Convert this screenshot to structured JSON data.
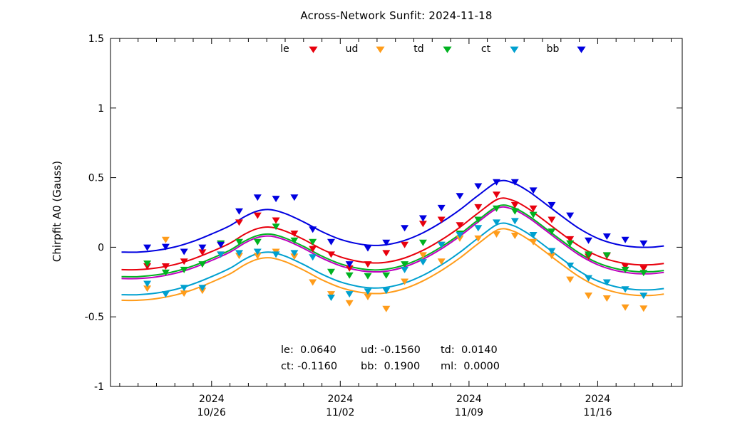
{
  "background": "#ffffff",
  "chart_data": {
    "type": "line",
    "title": "Across-Network Sunfit: 2024-11-18",
    "ylabel": "Chirpfit A0 (Gauss)",
    "ylim": [
      -1,
      1.5
    ],
    "y_ticks": [
      {
        "v": -1,
        "label": "-1"
      },
      {
        "v": -0.5,
        "label": "-0.5"
      },
      {
        "v": 0,
        "label": "0"
      },
      {
        "v": 0.5,
        "label": "0.5"
      },
      {
        "v": 1,
        "label": "1"
      },
      {
        "v": 1.5,
        "label": "1.5"
      }
    ],
    "x_range_days": [
      -0.5,
      30.6
    ],
    "x_minor_tick_every_days": 1,
    "x_major_ticks": [
      {
        "day": 5,
        "line1": "2024",
        "line2": "10/26"
      },
      {
        "day": 12,
        "line1": "2024",
        "line2": "11/02"
      },
      {
        "day": 19,
        "line1": "2024",
        "line2": "11/09"
      },
      {
        "day": 26,
        "line1": "2024",
        "line2": "11/16"
      }
    ],
    "grid": false,
    "marker": "triangle-down",
    "legend_position": "top-center-inside",
    "legend_entries": [
      "le",
      "ud",
      "td",
      "ct",
      "bb"
    ],
    "master_curve_ml": [
      [
        0.1,
        -0.225
      ],
      [
        1,
        -0.225
      ],
      [
        2,
        -0.213
      ],
      [
        3,
        -0.188
      ],
      [
        4,
        -0.148
      ],
      [
        5,
        -0.095
      ],
      [
        6,
        -0.035
      ],
      [
        6.8,
        0.03
      ],
      [
        7.5,
        0.07
      ],
      [
        8.2,
        0.08
      ],
      [
        9,
        0.052
      ],
      [
        10,
        -0.008
      ],
      [
        11,
        -0.078
      ],
      [
        12,
        -0.133
      ],
      [
        13,
        -0.166
      ],
      [
        13.8,
        -0.177
      ],
      [
        14.6,
        -0.17
      ],
      [
        15.5,
        -0.141
      ],
      [
        16.5,
        -0.086
      ],
      [
        17.5,
        -0.011
      ],
      [
        18.5,
        0.079
      ],
      [
        19.5,
        0.182
      ],
      [
        20.6,
        0.283
      ],
      [
        21.4,
        0.272
      ],
      [
        22.2,
        0.215
      ],
      [
        23,
        0.138
      ],
      [
        24,
        0.038
      ],
      [
        25,
        -0.056
      ],
      [
        26,
        -0.126
      ],
      [
        27,
        -0.168
      ],
      [
        28,
        -0.188
      ],
      [
        28.9,
        -0.19
      ],
      [
        29.6,
        -0.181
      ]
    ],
    "series": [
      {
        "name": "le",
        "color": "#e8000d",
        "offset": 0.064,
        "points": [
          [
            1.5,
            -0.135
          ],
          [
            2.5,
            -0.135
          ],
          [
            3.5,
            -0.1
          ],
          [
            4.5,
            -0.035
          ],
          [
            5.5,
            0.02
          ],
          [
            6.5,
            0.18
          ],
          [
            7.5,
            0.23
          ],
          [
            8.5,
            0.195
          ],
          [
            9.5,
            0.1
          ],
          [
            10.5,
            -0.01
          ],
          [
            11.5,
            -0.05
          ],
          [
            12.5,
            -0.15
          ],
          [
            13.5,
            -0.12
          ],
          [
            14.5,
            -0.04
          ],
          [
            15.5,
            0.02
          ],
          [
            16.5,
            0.17
          ],
          [
            17.5,
            0.2
          ],
          [
            18.5,
            0.16
          ],
          [
            19.5,
            0.29
          ],
          [
            20.5,
            0.38
          ],
          [
            21.5,
            0.305
          ],
          [
            22.5,
            0.28
          ],
          [
            23.5,
            0.2
          ],
          [
            24.5,
            0.06
          ],
          [
            25.5,
            -0.065
          ],
          [
            26.5,
            -0.06
          ],
          [
            27.5,
            -0.135
          ],
          [
            28.5,
            -0.151
          ]
        ]
      },
      {
        "name": "ud",
        "color": "#ff9c1a",
        "offset": -0.156,
        "points": [
          [
            1.5,
            -0.295
          ],
          [
            2.5,
            0.055
          ],
          [
            3.5,
            -0.33
          ],
          [
            4.5,
            -0.31
          ],
          [
            5.5,
            -0.05
          ],
          [
            6.5,
            -0.06
          ],
          [
            7.5,
            -0.06
          ],
          [
            8.5,
            -0.03
          ],
          [
            9.5,
            -0.065
          ],
          [
            10.5,
            -0.25
          ],
          [
            11.5,
            -0.335
          ],
          [
            12.5,
            -0.4
          ],
          [
            13.5,
            -0.355
          ],
          [
            14.5,
            -0.44
          ],
          [
            15.5,
            -0.245
          ],
          [
            16.5,
            -0.055
          ],
          [
            17.5,
            -0.1
          ],
          [
            18.5,
            0.065
          ],
          [
            19.5,
            0.065
          ],
          [
            20.5,
            0.095
          ],
          [
            21.5,
            0.085
          ],
          [
            22.5,
            0.04
          ],
          [
            23.5,
            -0.06
          ],
          [
            24.5,
            -0.23
          ],
          [
            25.5,
            -0.345
          ],
          [
            26.5,
            -0.365
          ],
          [
            27.5,
            -0.43
          ],
          [
            28.5,
            -0.438
          ]
        ]
      },
      {
        "name": "td",
        "color": "#00b220",
        "offset": 0.014,
        "points": [
          [
            1.5,
            -0.115
          ],
          [
            2.5,
            -0.18
          ],
          [
            3.5,
            -0.16
          ],
          [
            4.5,
            -0.12
          ],
          [
            5.5,
            0.03
          ],
          [
            6.5,
            0.04
          ],
          [
            7.5,
            0.04
          ],
          [
            8.5,
            0.15
          ],
          [
            9.5,
            0.05
          ],
          [
            10.5,
            0.04
          ],
          [
            11.5,
            -0.175
          ],
          [
            12.5,
            -0.2
          ],
          [
            13.5,
            -0.205
          ],
          [
            14.5,
            -0.2
          ],
          [
            15.5,
            -0.12
          ],
          [
            16.5,
            0.035
          ],
          [
            17.5,
            0.02
          ],
          [
            18.5,
            0.1
          ],
          [
            19.5,
            0.2
          ],
          [
            20.5,
            0.28
          ],
          [
            21.5,
            0.26
          ],
          [
            22.5,
            0.235
          ],
          [
            23.5,
            0.115
          ],
          [
            24.5,
            0.03
          ],
          [
            25.5,
            -0.05
          ],
          [
            26.5,
            -0.055
          ],
          [
            27.5,
            -0.16
          ],
          [
            28.5,
            -0.182
          ]
        ]
      },
      {
        "name": "ct",
        "color": "#00a0cf",
        "offset": -0.116,
        "points": [
          [
            1.5,
            -0.26
          ],
          [
            2.5,
            -0.335
          ],
          [
            3.5,
            -0.29
          ],
          [
            4.5,
            -0.29
          ],
          [
            5.5,
            -0.05
          ],
          [
            6.5,
            -0.04
          ],
          [
            7.5,
            -0.03
          ],
          [
            8.5,
            -0.05
          ],
          [
            9.5,
            -0.04
          ],
          [
            10.5,
            -0.07
          ],
          [
            11.5,
            -0.36
          ],
          [
            12.5,
            -0.335
          ],
          [
            13.5,
            -0.315
          ],
          [
            14.5,
            -0.31
          ],
          [
            15.5,
            -0.16
          ],
          [
            16.5,
            -0.105
          ],
          [
            17.5,
            0.02
          ],
          [
            18.5,
            0.09
          ],
          [
            19.5,
            0.14
          ],
          [
            20.5,
            0.18
          ],
          [
            21.5,
            0.19
          ],
          [
            22.5,
            0.09
          ],
          [
            23.5,
            -0.025
          ],
          [
            24.5,
            -0.13
          ],
          [
            25.5,
            -0.22
          ],
          [
            26.5,
            -0.25
          ],
          [
            27.5,
            -0.3
          ],
          [
            28.5,
            -0.346
          ]
        ]
      },
      {
        "name": "bb",
        "color": "#0000e0",
        "offset": 0.19,
        "points": [
          [
            1.5,
            0.0
          ],
          [
            2.5,
            0.005
          ],
          [
            3.5,
            -0.03
          ],
          [
            4.5,
            0.0
          ],
          [
            5.5,
            0.02
          ],
          [
            6.5,
            0.26
          ],
          [
            7.5,
            0.36
          ],
          [
            8.5,
            0.35
          ],
          [
            9.5,
            0.36
          ],
          [
            10.5,
            0.13
          ],
          [
            11.5,
            0.04
          ],
          [
            12.5,
            -0.12
          ],
          [
            13.5,
            -0.005
          ],
          [
            14.5,
            0.035
          ],
          [
            15.5,
            0.14
          ],
          [
            16.5,
            0.21
          ],
          [
            17.5,
            0.285
          ],
          [
            18.5,
            0.37
          ],
          [
            19.5,
            0.44
          ],
          [
            20.5,
            0.47
          ],
          [
            21.5,
            0.47
          ],
          [
            22.5,
            0.41
          ],
          [
            23.5,
            0.305
          ],
          [
            24.5,
            0.23
          ],
          [
            25.5,
            0.05
          ],
          [
            26.5,
            0.08
          ],
          [
            27.5,
            0.055
          ],
          [
            28.5,
            0.029
          ]
        ]
      },
      {
        "name": "ml",
        "color": "#bf00bf",
        "offset": 0.0,
        "points": []
      }
    ],
    "fit_results": [
      {
        "name": "le",
        "value": " 0.0640"
      },
      {
        "name": "ud",
        "value": "-0.1560"
      },
      {
        "name": "td",
        "value": " 0.0140"
      },
      {
        "name": "ct",
        "value": "-0.1160"
      },
      {
        "name": "bb",
        "value": " 0.1900"
      },
      {
        "name": "ml",
        "value": " 0.0000"
      }
    ]
  }
}
